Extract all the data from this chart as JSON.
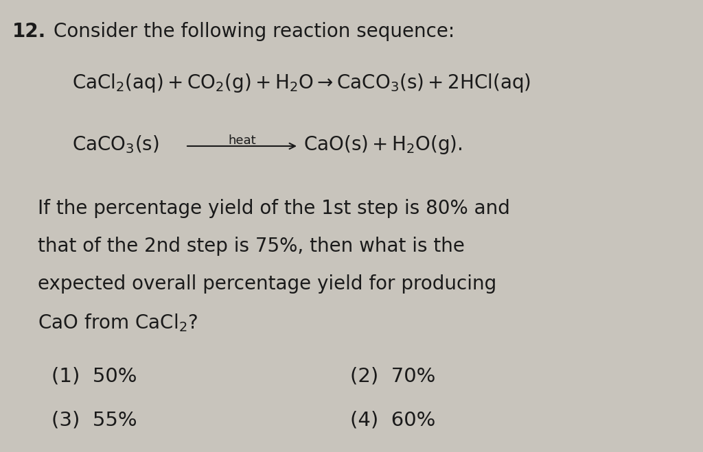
{
  "bg_color": "#c8c4bc",
  "text_color": "#1a1a1a",
  "question_number": "12.",
  "title": "Consider the following reaction sequence:",
  "options": [
    [
      "(1)  50%",
      "(2)  70%"
    ],
    [
      "(3)  55%",
      "(4)  60%"
    ]
  ],
  "font_size_main": 20,
  "font_size_reaction": 20,
  "font_size_question": 20,
  "font_size_options": 21,
  "font_size_heat": 13
}
